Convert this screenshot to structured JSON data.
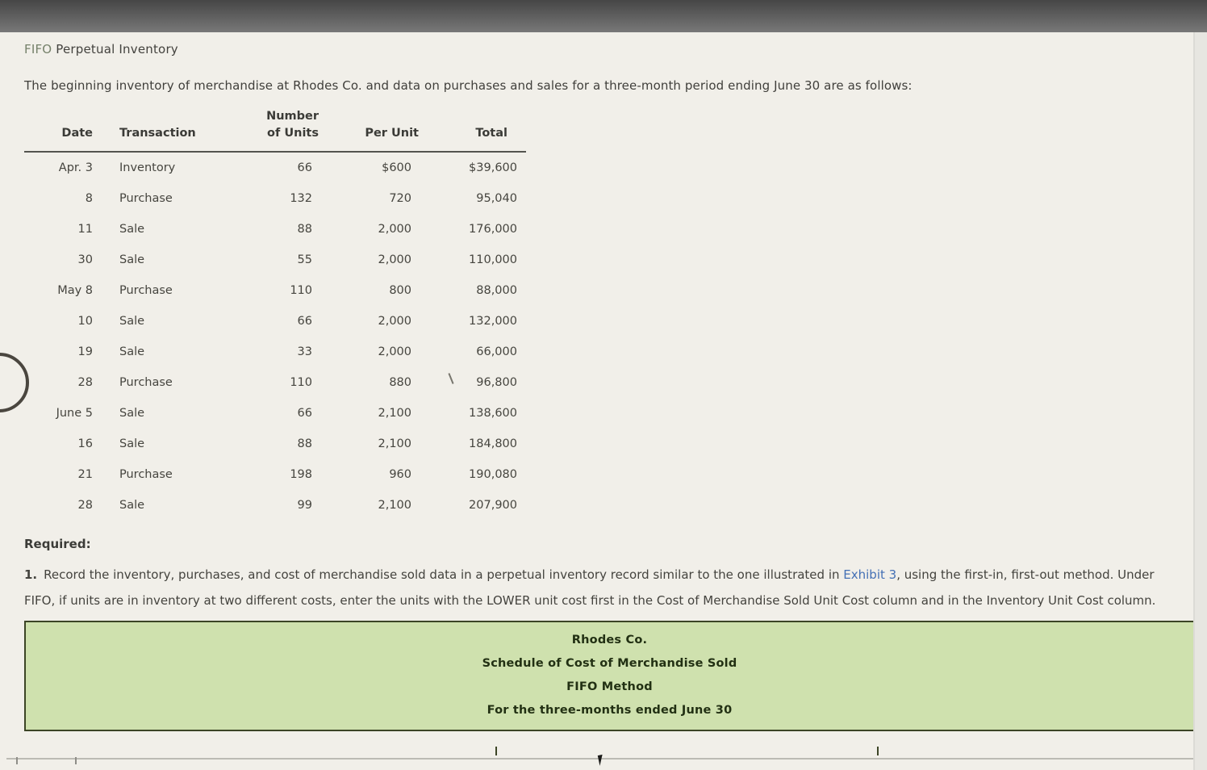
{
  "header": {
    "title_accent": "FIFO",
    "title_rest": " Perpetual Inventory"
  },
  "intro": {
    "text": "The beginning inventory of merchandise at Rhodes Co. and data on purchases and sales for a three-month period ending June 30 are as follows:"
  },
  "inventory_table": {
    "headers": {
      "date": "Date",
      "transaction": "Transaction",
      "units_line1": "Number",
      "units_line2": "of Units",
      "per_unit": "Per Unit",
      "total": "Total"
    },
    "rows": [
      {
        "date": "Apr. 3",
        "transaction": "Inventory",
        "units": "66",
        "per_unit": "$600",
        "total": "$39,600"
      },
      {
        "date": "8",
        "transaction": "Purchase",
        "units": "132",
        "per_unit": "720",
        "total": "95,040"
      },
      {
        "date": "11",
        "transaction": "Sale",
        "units": "88",
        "per_unit": "2,000",
        "total": "176,000"
      },
      {
        "date": "30",
        "transaction": "Sale",
        "units": "55",
        "per_unit": "2,000",
        "total": "110,000"
      },
      {
        "date": "May 8",
        "transaction": "Purchase",
        "units": "110",
        "per_unit": "800",
        "total": "88,000"
      },
      {
        "date": "10",
        "transaction": "Sale",
        "units": "66",
        "per_unit": "2,000",
        "total": "132,000"
      },
      {
        "date": "19",
        "transaction": "Sale",
        "units": "33",
        "per_unit": "2,000",
        "total": "66,000"
      },
      {
        "date": "28",
        "transaction": "Purchase",
        "units": "110",
        "per_unit": "880",
        "total": "96,800"
      },
      {
        "date": "June 5",
        "transaction": "Sale",
        "units": "66",
        "per_unit": "2,100",
        "total": "138,600"
      },
      {
        "date": "16",
        "transaction": "Sale",
        "units": "88",
        "per_unit": "2,100",
        "total": "184,800"
      },
      {
        "date": "21",
        "transaction": "Purchase",
        "units": "198",
        "per_unit": "960",
        "total": "190,080"
      },
      {
        "date": "28",
        "transaction": "Sale",
        "units": "99",
        "per_unit": "2,100",
        "total": "207,900"
      }
    ]
  },
  "required": {
    "label": "Required:",
    "item_number": "1.",
    "text_before_link": "Record the inventory, purchases, and cost of merchandise sold data in a perpetual inventory record similar to the one illustrated in ",
    "link_text": "Exhibit 3",
    "text_after_link": ", using the first-in, first-out method. Under FIFO, if units are in inventory at two different costs, enter the units with the LOWER unit cost first in the Cost of Merchandise Sold Unit Cost column and in the Inventory Unit Cost column."
  },
  "schedule_box": {
    "line1": "Rhodes Co.",
    "line2": "Schedule of Cost of Merchandise Sold",
    "line3": "FIFO Method",
    "line4": "For the three-months ended June 30"
  },
  "colors": {
    "title_accent_green": "#75816a",
    "link_blue": "#4470b5",
    "schedule_box_bg": "#cfe1ae",
    "schedule_box_border": "#3c4526",
    "schedule_box_text": "#223013",
    "page_background": "#f1efe9",
    "topbar_gray": "#5c5c5c"
  }
}
